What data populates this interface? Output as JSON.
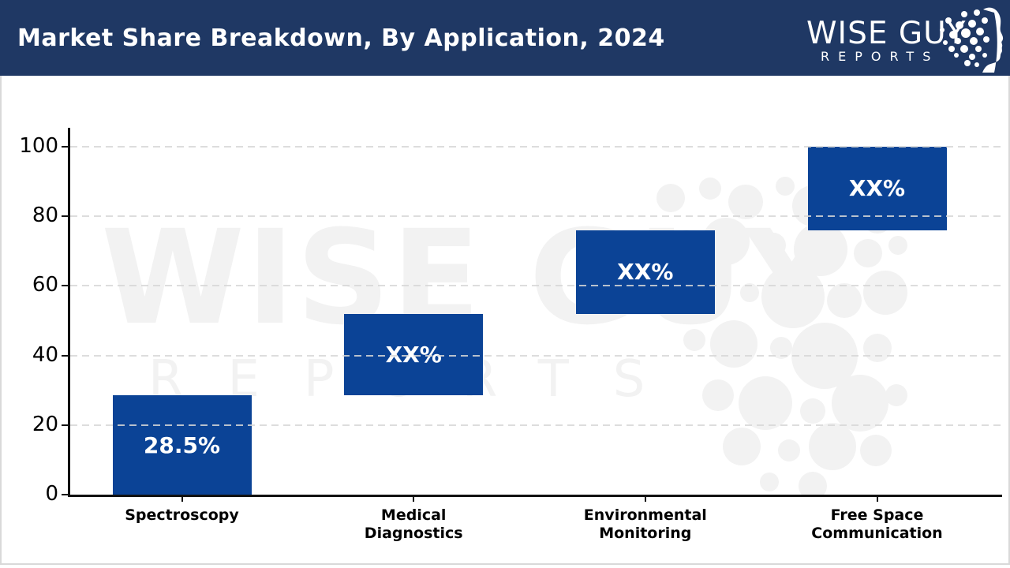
{
  "header": {
    "title": "Market Share Breakdown, By Application, 2024",
    "logo": {
      "line1": "WISE GUY",
      "line2": "REPORTS"
    }
  },
  "watermark": {
    "line1": "WISE GUY",
    "line2": "REPORTS"
  },
  "chart_data": {
    "type": "bar",
    "subtype": "floating-waterfall",
    "title": "Market Share Breakdown, By Application, 2024",
    "categories": [
      "Spectroscopy",
      "Medical Diagnostics",
      "Environmental Monitoring",
      "Free Space Communication"
    ],
    "category_lines": [
      [
        "Spectroscopy"
      ],
      [
        "Medical",
        "Diagnostics"
      ],
      [
        "Environmental",
        "Monitoring"
      ],
      [
        "Free Space",
        "Communication"
      ]
    ],
    "segments": [
      {
        "category": "Spectroscopy",
        "start": 0,
        "end": 28.5,
        "label": "28.5%"
      },
      {
        "category": "Medical Diagnostics",
        "start": 28.5,
        "end": 52,
        "label": "XX%"
      },
      {
        "category": "Environmental Monitoring",
        "start": 52,
        "end": 76,
        "label": "XX%"
      },
      {
        "category": "Free Space Communication",
        "start": 76,
        "end": 100,
        "label": "XX%"
      }
    ],
    "ylim": [
      0,
      100
    ],
    "yticks": [
      0,
      20,
      40,
      60,
      80,
      100
    ],
    "xlabel": "",
    "ylabel": "",
    "grid": "horizontal dashed",
    "legend": "none",
    "bar_color": "#0b4396",
    "bar_label_color": "#ffffff",
    "grid_color": "#d9d9d9",
    "axis_color": "#111111",
    "header_bg_color": "#1f3864",
    "watermark_color": "#f2f2f2"
  }
}
